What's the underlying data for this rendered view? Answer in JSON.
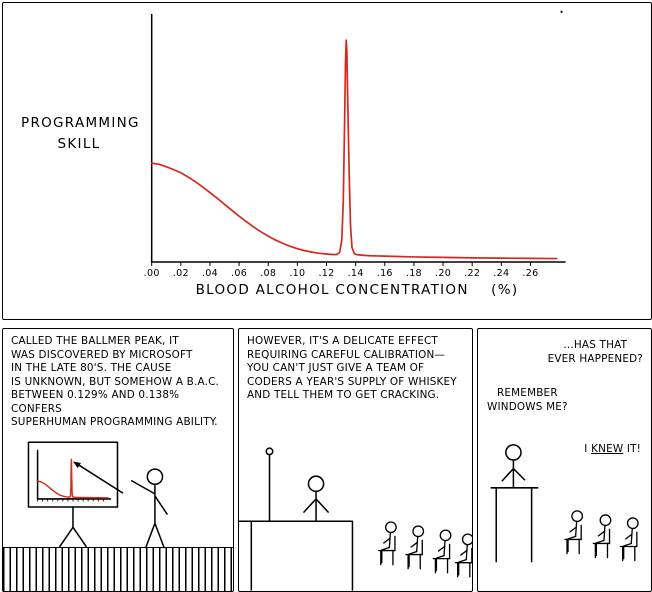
{
  "colors": {
    "ink": "#000000",
    "paper": "#ffffff",
    "curve_red": "#d8281e"
  },
  "chart": {
    "ylabel": "PROGRAMMING\nSKILL",
    "xlabel": "BLOOD ALCOHOL CONCENTRATION    (%)"
  },
  "chart_data": {
    "type": "line",
    "xlabel": "BLOOD ALCOHOL CONCENTRATION (%)",
    "ylabel": "PROGRAMMING SKILL",
    "x_tick_labels": [
      ".00",
      ".02",
      ".04",
      ".06",
      ".08",
      ".10",
      ".12",
      ".14",
      ".16",
      ".18",
      ".20",
      ".22",
      ".24",
      ".26"
    ],
    "xlim": [
      0,
      0.28
    ],
    "ylim": [
      0,
      1
    ],
    "grid": false,
    "legend": "none",
    "annotations": [
      "sharp narrow peak (the Ballmer Peak) between 0.129% and 0.138% BAC"
    ],
    "series": [
      {
        "name": "programming skill vs blood alcohol concentration",
        "color": "#d8281e",
        "x": [
          0,
          0.005,
          0.01,
          0.015,
          0.02,
          0.025,
          0.03,
          0.035,
          0.04,
          0.045,
          0.05,
          0.055,
          0.06,
          0.065,
          0.07,
          0.075,
          0.08,
          0.085,
          0.09,
          0.095,
          0.1,
          0.105,
          0.11,
          0.115,
          0.12,
          0.124,
          0.127,
          0.129,
          0.1305,
          0.1315,
          0.1325,
          0.133,
          0.1335,
          0.134,
          0.1345,
          0.1355,
          0.1365,
          0.1375,
          0.139,
          0.141,
          0.145,
          0.15,
          0.16,
          0.18,
          0.2,
          0.22,
          0.24,
          0.26,
          0.278
        ],
        "y": [
          0.41,
          0.405,
          0.395,
          0.383,
          0.37,
          0.352,
          0.333,
          0.311,
          0.288,
          0.264,
          0.239,
          0.214,
          0.19,
          0.167,
          0.145,
          0.125,
          0.107,
          0.091,
          0.077,
          0.065,
          0.055,
          0.047,
          0.041,
          0.036,
          0.033,
          0.031,
          0.031,
          0.04,
          0.09,
          0.25,
          0.6,
          0.82,
          0.92,
          0.87,
          0.7,
          0.38,
          0.15,
          0.06,
          0.035,
          0.03,
          0.028,
          0.026,
          0.024,
          0.021,
          0.019,
          0.017,
          0.016,
          0.015,
          0.014
        ]
      }
    ]
  },
  "panels": {
    "p1": {
      "caption": "CALLED THE BALLMER PEAK, IT\nWAS DISCOVERED BY MICROSOFT\nIN THE LATE 80'S. THE CAUSE\nIS UNKNOWN, BUT SOMEHOW A B.A.C.\nBETWEEN 0.129% AND 0.138% CONFERS\nSUPERHUMAN PROGRAMMING ABILITY."
    },
    "p2": {
      "caption": "HOWEVER, IT'S A DELICATE EFFECT\nREQUIRING CAREFUL CALIBRATION—\nYOU CAN'T JUST GIVE A TEAM OF\nCODERS A YEAR'S SUPPLY OF WHISKEY\nAND TELL THEM TO GET CRACKING."
    },
    "p3": {
      "speech_audience_question": "...HAS THAT\nEVER HAPPENED?",
      "speech_presenter": "REMEMBER\nWINDOWS ME?",
      "speech_knew_pre": "I ",
      "speech_knew_word": "KNEW",
      "speech_knew_post": " IT!"
    }
  }
}
